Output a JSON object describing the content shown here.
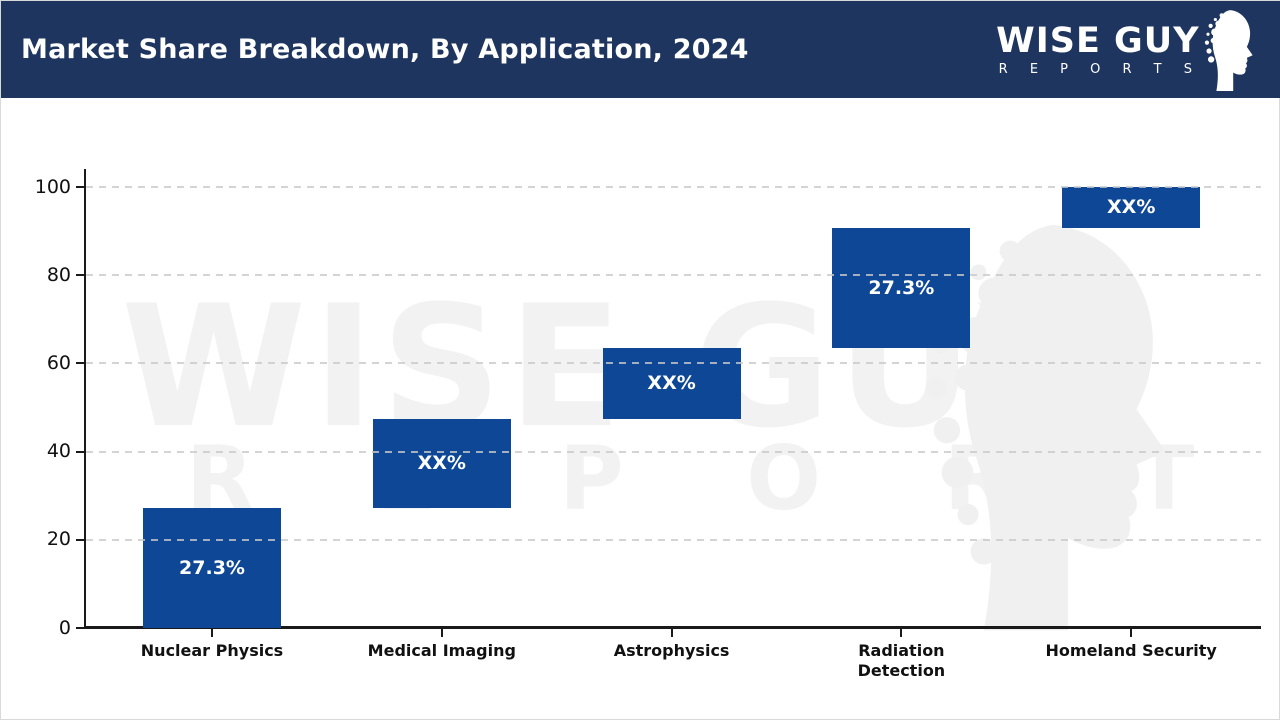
{
  "header": {
    "title": "Market Share Breakdown, By Application, 2024",
    "logo": {
      "name": "WISE GUY",
      "subtitle": "R E P O R T S"
    }
  },
  "watermark": {
    "brand": "WISE GUY",
    "subtitle": "R E P O R T S"
  },
  "colors": {
    "header_bg": "#1e3560",
    "bar": "#0d4796",
    "bar_label": "#ffffff",
    "axis_text": "#111111",
    "gridline": "#e3e3e3",
    "watermark": "#f2f2f2"
  },
  "chart_data": {
    "type": "bar",
    "subtype": "floating-waterfall",
    "title": "Market Share Breakdown, By Application, 2024",
    "categories": [
      "Nuclear Physics",
      "Medical Imaging",
      "Astrophysics",
      "Radiation Detection",
      "Homeland Security"
    ],
    "bars": [
      {
        "category": "Nuclear Physics",
        "start": 0,
        "end": 27.3,
        "value": 27.3,
        "label": "27.3%"
      },
      {
        "category": "Medical Imaging",
        "start": 27.3,
        "end": 47.5,
        "value": 20.2,
        "label": "XX%"
      },
      {
        "category": "Astrophysics",
        "start": 47.5,
        "end": 63.5,
        "value": 16.0,
        "label": "XX%"
      },
      {
        "category": "Radiation Detection",
        "start": 63.5,
        "end": 90.8,
        "value": 27.3,
        "label": "27.3%"
      },
      {
        "category": "Homeland Security",
        "start": 90.8,
        "end": 100,
        "value": 9.2,
        "label": "XX%"
      }
    ],
    "xlabel": "",
    "ylabel": "",
    "ylim": [
      0,
      100
    ],
    "yticks": [
      0,
      20,
      40,
      60,
      80,
      100
    ],
    "grid": "horizontal-dashed",
    "legend": "none"
  }
}
